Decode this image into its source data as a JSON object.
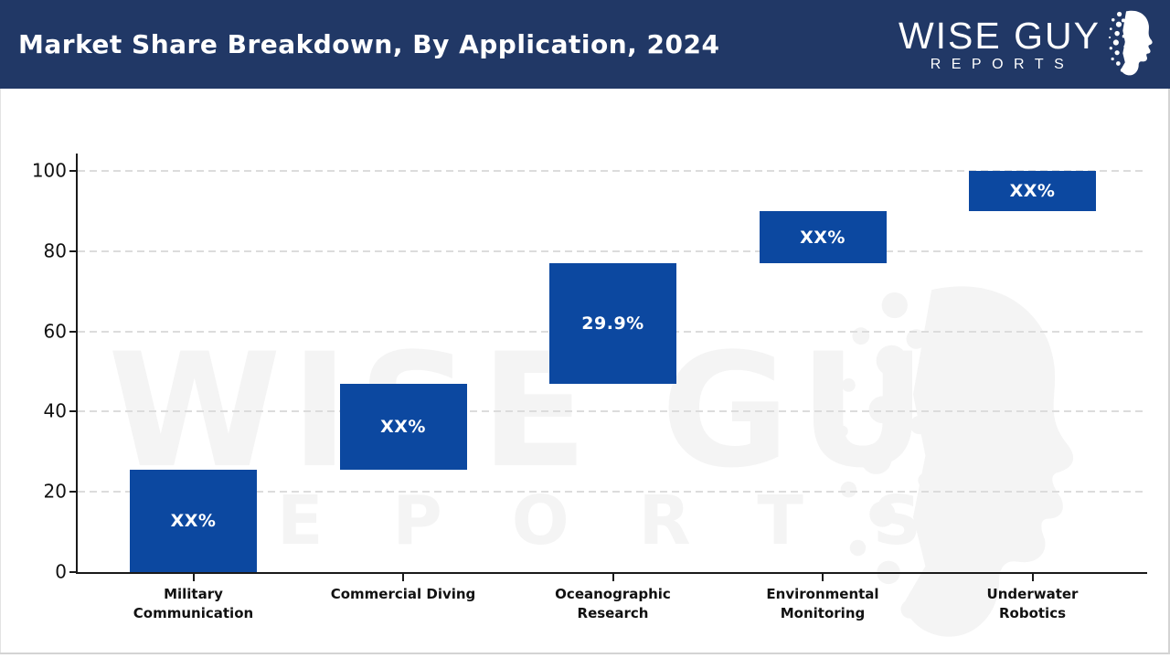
{
  "header": {
    "title": "Market Share Breakdown, By Application, 2024",
    "logo": {
      "wordmark": "WISE GUY",
      "subtext": "REPORTS"
    },
    "bg_color": "#213866"
  },
  "watermark": {
    "wordmark": "WISE GUY",
    "subtext": "REPORTS"
  },
  "colors": {
    "header_bg": "#213866",
    "bar": "#0C48A0",
    "bar_label": "#ffffff",
    "gridline": "#dcdcdc",
    "axis": "#1a1a1a",
    "watermark": "#f4f4f4"
  },
  "chart_data": {
    "type": "bar",
    "subtype": "waterfall",
    "title": "Market Share Breakdown, By Application, 2024",
    "xlabel": "",
    "ylabel": "",
    "ylim": [
      0,
      105
    ],
    "yticks": [
      0,
      20,
      40,
      60,
      80,
      100
    ],
    "grid": "horizontal-dashed",
    "legend": "none",
    "categories": [
      "Military Communication",
      "Commercial Diving",
      "Oceanographic Research",
      "Environmental Monitoring",
      "Underwater Robotics"
    ],
    "category_label_lines": [
      [
        "Military",
        "Communication"
      ],
      [
        "Commercial Diving"
      ],
      [
        "Oceanographic",
        "Research"
      ],
      [
        "Environmental",
        "Monitoring"
      ],
      [
        "Underwater",
        "Robotics"
      ]
    ],
    "bars": [
      {
        "category": "Military Communication",
        "start": 0,
        "end": 25.5,
        "label": "XX%"
      },
      {
        "category": "Commercial Diving",
        "start": 25.5,
        "end": 47.0,
        "label": "XX%"
      },
      {
        "category": "Oceanographic Research",
        "start": 47.0,
        "end": 76.9,
        "label": "29.9%"
      },
      {
        "category": "Environmental Monitoring",
        "start": 77.0,
        "end": 89.9,
        "label": "XX%"
      },
      {
        "category": "Underwater Robotics",
        "start": 89.9,
        "end": 99.9,
        "label": "XX%"
      }
    ]
  }
}
